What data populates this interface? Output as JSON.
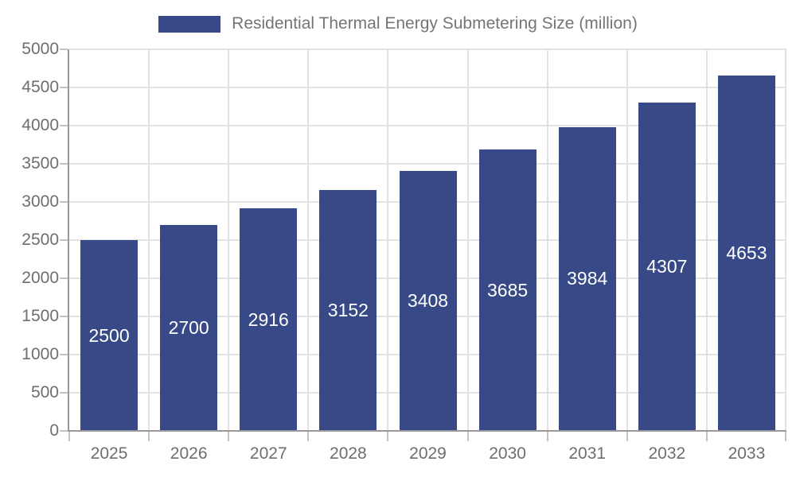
{
  "legend": {
    "label": "Residential Thermal Energy Submetering Size (million)"
  },
  "colors": {
    "bar": "#374A87",
    "bar_label": "#ffffff",
    "grid": "#e2e2e2",
    "axis_line": "#999999",
    "tick": "#c2c2c2",
    "axis_label": "#6e6e6e",
    "legend_text": "#757575",
    "background": "#ffffff"
  },
  "chart_data": {
    "type": "bar",
    "title": "Residential Thermal Energy Submetering Size (million)",
    "categories": [
      "2025",
      "2026",
      "2027",
      "2028",
      "2029",
      "2030",
      "2031",
      "2032",
      "2033"
    ],
    "values": [
      2500,
      2700,
      2916,
      3152,
      3408,
      3685,
      3984,
      4307,
      4653
    ],
    "xlabel": "",
    "ylabel": "",
    "ylim": [
      0,
      5000
    ],
    "ytick_step": 500,
    "yticks": [
      0,
      500,
      1000,
      1500,
      2000,
      2500,
      3000,
      3500,
      4000,
      4500,
      5000
    ],
    "grid": true,
    "legend_position": "top",
    "value_labels": "inside-center"
  }
}
